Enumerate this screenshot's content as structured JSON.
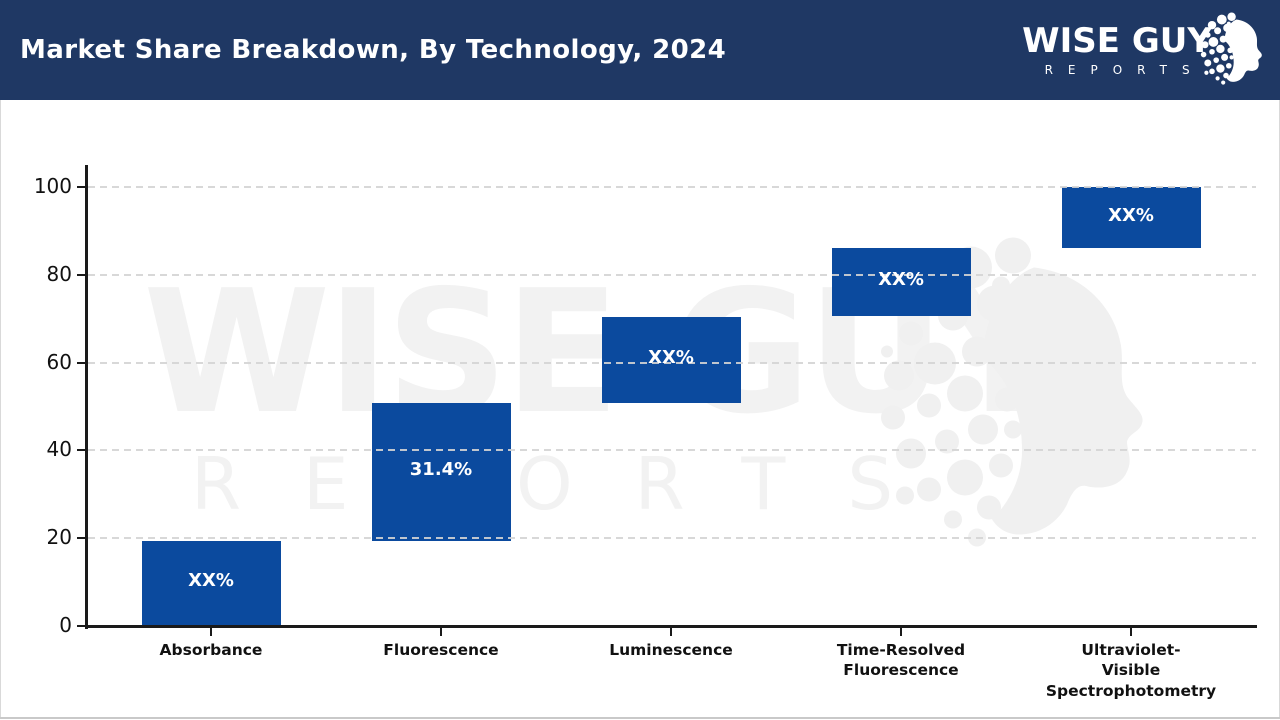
{
  "header": {
    "title": "Market Share Breakdown, By Technology, 2024",
    "logo": {
      "wordmark": "WISE GUY",
      "subtext": "REPORTS"
    }
  },
  "watermark": {
    "wordmark": "WISE GUY",
    "subtext": "REPORTS"
  },
  "colors": {
    "header_bg": "#1f3864",
    "bar": "#0b4a9e",
    "bar_label": "#ffffff",
    "axis": "#1a1a1a",
    "grid": "#d4d4d4",
    "tick_text": "#111111",
    "watermark": "#f2f2f2"
  },
  "chart_data": {
    "type": "bar",
    "subtype": "waterfall",
    "title": "Market Share Breakdown, By Technology, 2024",
    "unit": "%",
    "categories": [
      "Absorbance",
      "Fluorescence",
      "Luminescence",
      "Time-Resolved\nFluorescence",
      "Ultraviolet-\nVisible\nSpectrophotometry"
    ],
    "segments": [
      {
        "category": "Absorbance",
        "start": 0,
        "end": 19.4,
        "label": "XX%"
      },
      {
        "category": "Fluorescence",
        "start": 19.4,
        "end": 50.8,
        "label": "31.4%",
        "value": 31.4
      },
      {
        "category": "Luminescence",
        "start": 50.8,
        "end": 70.5,
        "label": "XX%"
      },
      {
        "category": "Time-Resolved Fluorescence",
        "start": 70.5,
        "end": 86.1,
        "label": "XX%"
      },
      {
        "category": "Ultraviolet-Visible Spectrophotometry",
        "start": 86.1,
        "end": 100,
        "label": "XX%"
      }
    ],
    "ylim": [
      0,
      100
    ],
    "yticks": [
      0,
      20,
      40,
      60,
      80,
      100
    ],
    "grid": "horizontal-dashed",
    "legend": null,
    "xlabel": "",
    "ylabel": ""
  }
}
